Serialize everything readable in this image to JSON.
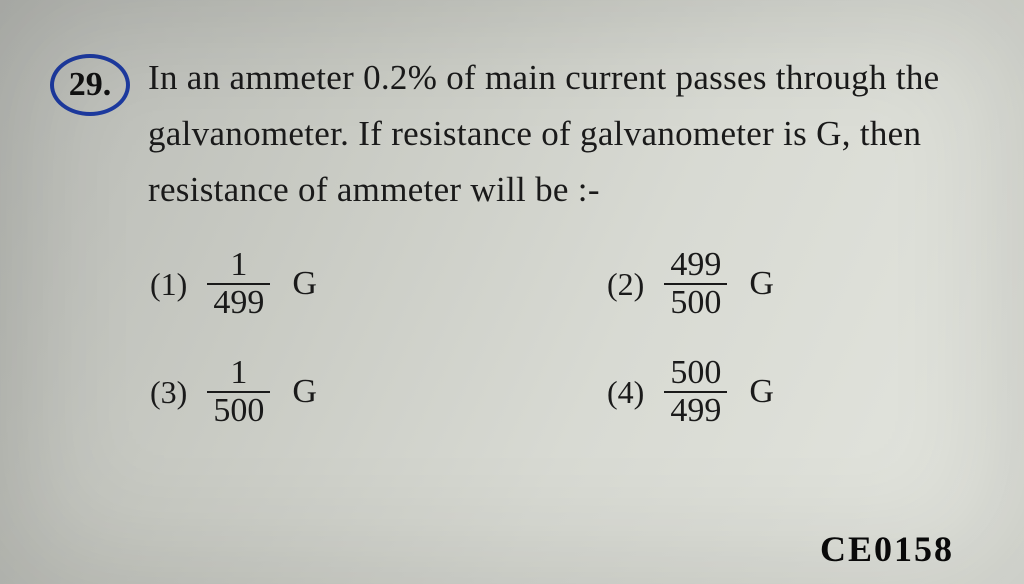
{
  "question": {
    "number": "29.",
    "text": "In an ammeter 0.2% of main current passes through the galvanometer. If resistance of galvanometer is G, then resistance of ammeter will be :-",
    "variable": "G"
  },
  "options": [
    {
      "label": "(1)",
      "numerator": "1",
      "denominator": "499"
    },
    {
      "label": "(2)",
      "numerator": "499",
      "denominator": "500"
    },
    {
      "label": "(3)",
      "numerator": "1",
      "denominator": "500"
    },
    {
      "label": "(4)",
      "numerator": "500",
      "denominator": "499"
    }
  ],
  "code": "CE0158",
  "style": {
    "circle_border_color": "#1d3aa0",
    "text_color": "#1a1a1a",
    "bg_gradient_from": "#b8bab5",
    "bg_gradient_to": "#e4e6df",
    "body_fontsize": 35,
    "option_fontsize": 34,
    "code_fontsize": 36
  }
}
